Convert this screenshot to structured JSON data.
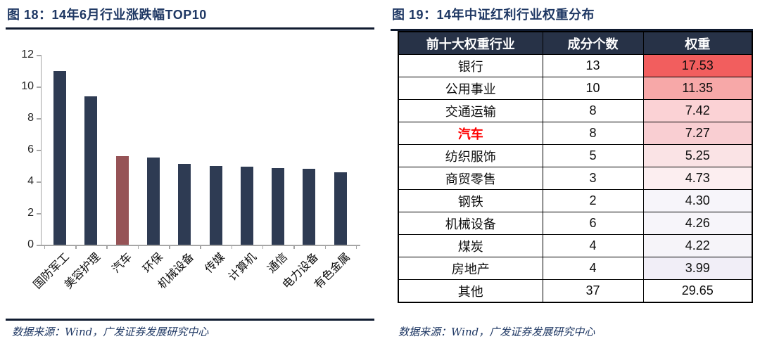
{
  "left_panel": {
    "title": "图 18：14年6月行业涨跌幅TOP10",
    "source": "数据来源：Wind，广发证券发展研究中心"
  },
  "right_panel": {
    "title": "图 19：14年中证红利行业权重分布",
    "source": "数据来源：Wind，广发证券发展研究中心"
  },
  "chart_data": {
    "type": "bar",
    "title": "14年6月行业涨跌幅TOP10",
    "categories": [
      "国防军工",
      "美容护理",
      "汽车",
      "环保",
      "机械设备",
      "传媒",
      "计算机",
      "通信",
      "电力设备",
      "有色金属"
    ],
    "values": [
      11.0,
      9.4,
      5.6,
      5.5,
      5.1,
      5.0,
      4.95,
      4.85,
      4.8,
      4.6
    ],
    "highlight_index": 2,
    "bar_color": "#2e3b53",
    "highlight_color": "#965356",
    "axis_color": "#a6a6a6",
    "xlabel": "",
    "ylabel": "",
    "ylim": [
      0,
      12
    ],
    "yticks": [
      0,
      2,
      4,
      6,
      8,
      10,
      12
    ],
    "grid": false,
    "legend": null
  },
  "table": {
    "headers": [
      "前十大权重行业",
      "成分个数",
      "权重"
    ],
    "header_bg": "#273247",
    "highlight_text_color": "#ff0000",
    "rows": [
      {
        "industry": "银行",
        "count": "13",
        "weight": "17.53",
        "weight_bg": "#f25e5e",
        "highlight": false
      },
      {
        "industry": "公用事业",
        "count": "10",
        "weight": "11.35",
        "weight_bg": "#f7a8a8",
        "highlight": false
      },
      {
        "industry": "交通运输",
        "count": "8",
        "weight": "7.42",
        "weight_bg": "#fbd2d5",
        "highlight": false
      },
      {
        "industry": "汽车",
        "count": "8",
        "weight": "7.27",
        "weight_bg": "#f9ced2",
        "highlight": true
      },
      {
        "industry": "纺织服饰",
        "count": "5",
        "weight": "5.25",
        "weight_bg": "#fae3e5",
        "highlight": false
      },
      {
        "industry": "商贸零售",
        "count": "3",
        "weight": "4.73",
        "weight_bg": "#fceef0",
        "highlight": false
      },
      {
        "industry": "钢铁",
        "count": "2",
        "weight": "4.30",
        "weight_bg": "#f7f5fa",
        "highlight": false
      },
      {
        "industry": "机械设备",
        "count": "6",
        "weight": "4.26",
        "weight_bg": "#f7f5fa",
        "highlight": false
      },
      {
        "industry": "煤炭",
        "count": "4",
        "weight": "4.22",
        "weight_bg": "#f6f4f9",
        "highlight": false
      },
      {
        "industry": "房地产",
        "count": "4",
        "weight": "3.99",
        "weight_bg": "#f1eef7",
        "highlight": false
      },
      {
        "industry": "其他",
        "count": "37",
        "weight": "29.65",
        "weight_bg": "#ffffff",
        "highlight": false
      }
    ]
  }
}
